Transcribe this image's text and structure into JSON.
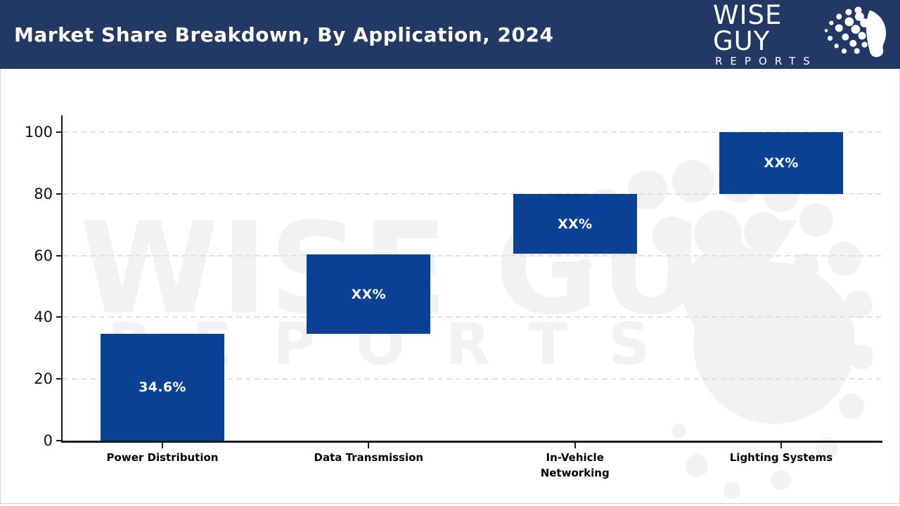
{
  "header": {
    "title": "Market Share Breakdown, By Application, 2024",
    "logo": {
      "primary": "WISE GUY",
      "secondary": "REPORTS"
    }
  },
  "watermark": {
    "primary": "WISE GUY",
    "secondary": "REPORTS"
  },
  "chart_data": {
    "type": "bar",
    "variant": "waterfall",
    "title": "Market Share Breakdown, By Application, 2024",
    "categories": [
      "Power Distribution",
      "Data Transmission",
      "In-Vehicle\nNetworking",
      "Lighting Systems"
    ],
    "segments": [
      {
        "category": "Power Distribution",
        "start": 0,
        "end": 34.6,
        "label": "34.6%"
      },
      {
        "category": "Data Transmission",
        "start": 34.6,
        "end": 60.3,
        "label": "XX%"
      },
      {
        "category": "In-Vehicle Networking",
        "start": 60.5,
        "end": 80,
        "label": "XX%"
      },
      {
        "category": "Lighting Systems",
        "start": 80,
        "end": 100,
        "label": "XX%"
      }
    ],
    "ylim": [
      0,
      100
    ],
    "yticks": [
      0,
      20,
      40,
      60,
      80,
      100
    ],
    "xlabel": "",
    "ylabel": "",
    "legend": null,
    "grid": {
      "horizontal": true,
      "style": "dashed",
      "color": "#e0e0e0"
    },
    "colors": {
      "bar": "#0a4195",
      "bar_label": "#ffffff",
      "header_background": "#213964",
      "axis": "#1a1a1a",
      "tick_label": "#111111",
      "category_label": "#000000",
      "watermark": "#f2f2f4"
    }
  }
}
